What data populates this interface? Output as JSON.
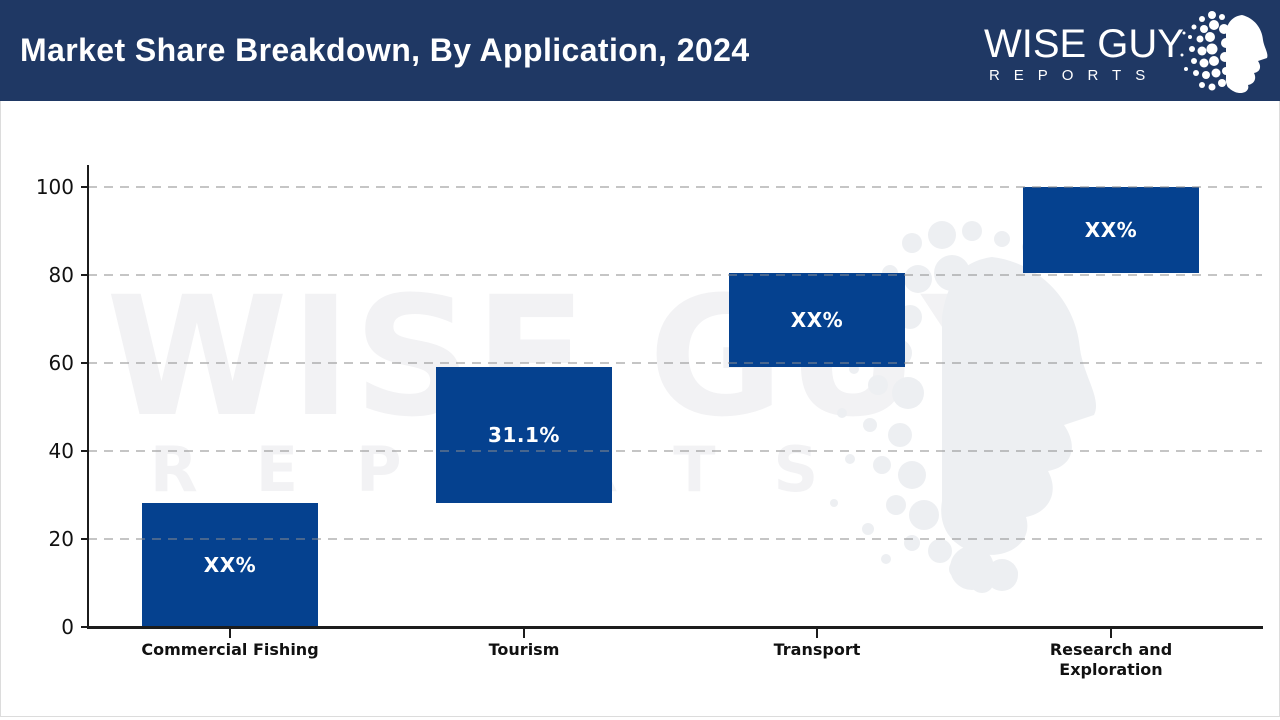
{
  "header": {
    "title": "Market Share Breakdown, By Application, 2024",
    "brand": {
      "name": "WISE GUY",
      "sub": "REPORTS"
    }
  },
  "watermark": {
    "line1": "WISE GUY",
    "line2": "REPORTS"
  },
  "colors": {
    "header_bg": "#1f3864",
    "bar": "#05418f",
    "watermark": "#f2f2f4",
    "axis": "#1c1c1c"
  },
  "chart_data": {
    "type": "bar",
    "subtype": "waterfall",
    "title": "Market Share Breakdown, By Application, 2024",
    "categories": [
      "Commercial Fishing",
      "Tourism",
      "Transport",
      "Research and Exploration"
    ],
    "series": [
      {
        "name": "Market share (%)",
        "segments": [
          {
            "category": "Commercial Fishing",
            "from": 0,
            "to": 28.1,
            "label": "XX%"
          },
          {
            "category": "Tourism",
            "from": 28.1,
            "to": 59.2,
            "label": "31.1%"
          },
          {
            "category": "Transport",
            "from": 59.2,
            "to": 80.4,
            "label": "XX%"
          },
          {
            "category": "Research and Exploration",
            "from": 80.4,
            "to": 100,
            "label": "XX%"
          }
        ]
      }
    ],
    "ylim": [
      0,
      100
    ],
    "yticks": [
      0,
      20,
      40,
      60,
      80,
      100
    ],
    "xlabel": "",
    "ylabel": "",
    "grid": "horizontal-dashed",
    "legend": "none",
    "bar_color": "#05418f"
  }
}
